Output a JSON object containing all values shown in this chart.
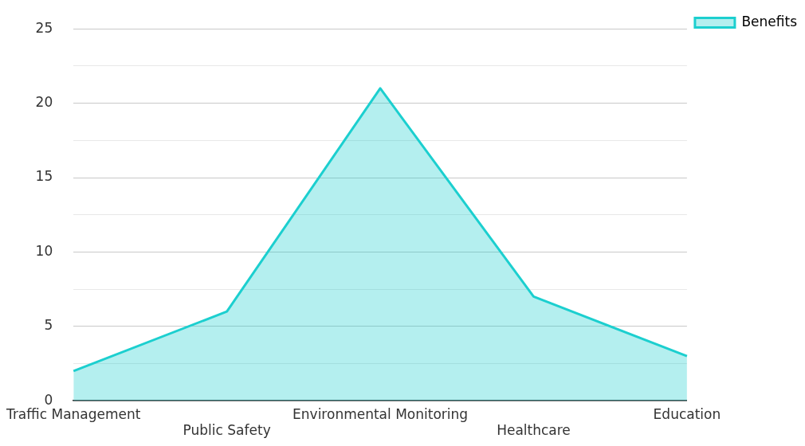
{
  "chart_data": {
    "type": "area",
    "categories": [
      "Traffic Management",
      "Public Safety",
      "Environmental Monitoring",
      "Healthcare",
      "Education"
    ],
    "series": [
      {
        "name": "Benefits",
        "color": "#1ccfcf",
        "values": [
          2,
          6,
          21,
          7,
          3
        ]
      }
    ],
    "ylim": [
      0,
      25
    ],
    "yticks": [
      0,
      {
        "value": 2.5,
        "label": null
      },
      5,
      {
        "value": 7.5,
        "label": null
      },
      10,
      {
        "value": 12.5,
        "label": null
      },
      15,
      {
        "value": 17.5,
        "label": null
      },
      20,
      {
        "value": 22.5,
        "label": null
      },
      25
    ],
    "grid": true,
    "legend": "top right",
    "marker": "none",
    "line_style": "solid"
  }
}
